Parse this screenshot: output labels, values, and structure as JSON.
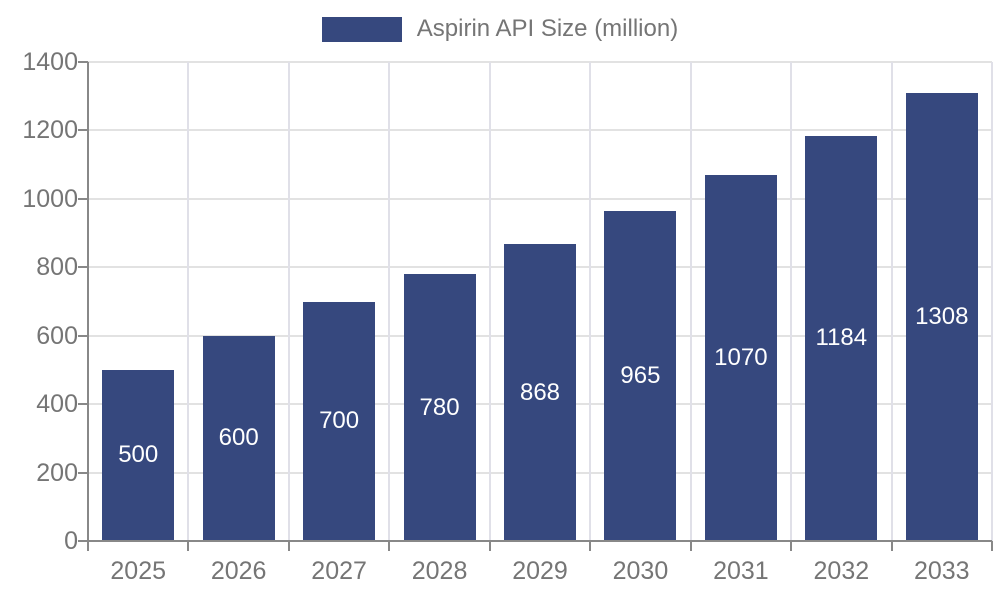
{
  "chart_data": {
    "type": "bar",
    "title": "Aspirin API Size (million)",
    "categories": [
      "2025",
      "2026",
      "2027",
      "2028",
      "2029",
      "2030",
      "2031",
      "2032",
      "2033"
    ],
    "values": [
      500,
      600,
      700,
      780,
      868,
      965,
      1070,
      1184,
      1308
    ],
    "series": [
      {
        "name": "Aspirin API Size (million)",
        "values": [
          500,
          600,
          700,
          780,
          868,
          965,
          1070,
          1184,
          1308
        ]
      }
    ],
    "xlabel": "",
    "ylabel": "",
    "ylim": [
      0,
      1400
    ],
    "y_ticks": [
      0,
      200,
      400,
      600,
      800,
      1000,
      1200,
      1400
    ],
    "grid": true,
    "legend_position": "top",
    "value_labels_position": "inside-center",
    "colors": {
      "bar": "#36487E",
      "axis_line": "#888888",
      "gridline_h": "#e2e2e2",
      "gridline_v": "#e0e0e8",
      "tick_label": "#757575",
      "value_label": "#ffffff",
      "background": "#ffffff"
    }
  }
}
